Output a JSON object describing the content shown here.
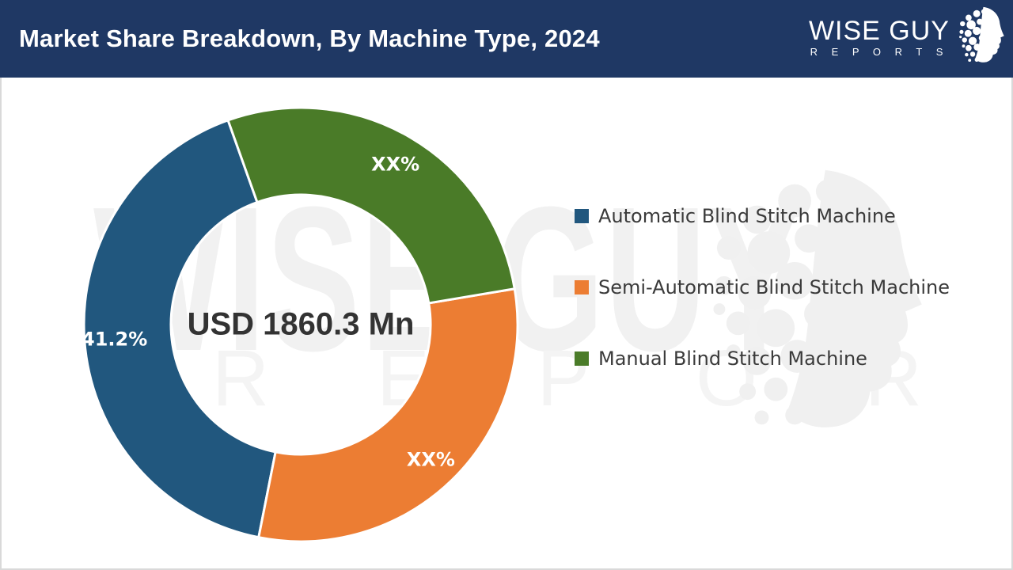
{
  "header": {
    "title": "Market Share Breakdown, By Machine Type, 2024",
    "bg_color": "#1F3864",
    "logo": {
      "line1": "WISE GUY",
      "line2": "R E P O R T S"
    }
  },
  "watermark": {
    "line1": "WISE GUY",
    "line2": "R E P O R T S"
  },
  "chart_data": {
    "type": "donut",
    "title": "Market Share Breakdown, By Machine Type, 2024",
    "center_label": "USD 1860.3 Mn",
    "legend_position": "right",
    "segments": [
      {
        "name": "Automatic Blind Stitch Machine",
        "display_label": "41.2%",
        "percent": 41.2,
        "color": "#21577E",
        "start_deg": 191.2,
        "end_deg": 340.4
      },
      {
        "name": "Semi-Automatic Blind Stitch Machine",
        "display_label": "XX%",
        "percent": 30.7,
        "color": "#EC7D33",
        "start_deg": 80.5,
        "end_deg": 191.2
      },
      {
        "name": "Manual Blind Stitch Machine",
        "display_label": "XX%",
        "percent": 28.1,
        "color": "#4A7B28",
        "start_deg": 340.4,
        "end_deg": 440.5
      }
    ]
  },
  "colors": {
    "header_bg": "#1F3864",
    "center_text": "#333333",
    "legend_text": "#3A3A3A",
    "watermark": "#F1F1F1",
    "frame_border": "#D9D9D9",
    "separator": "#FFFFFF"
  }
}
